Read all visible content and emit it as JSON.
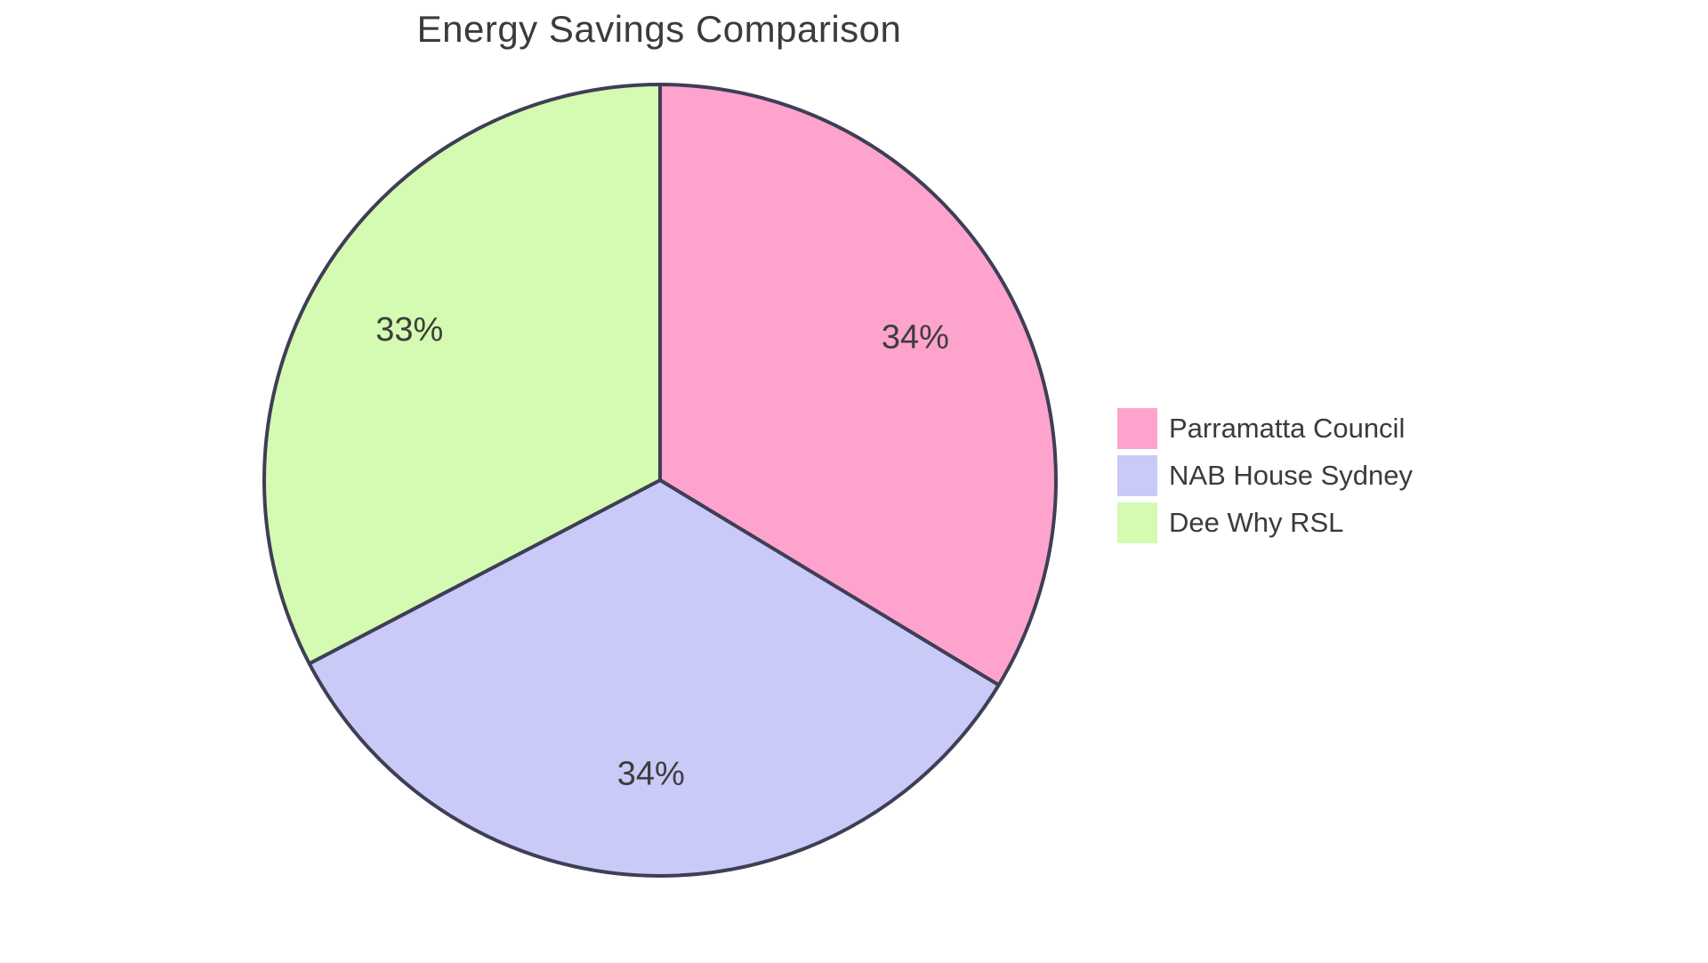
{
  "title": "Energy Savings Comparison",
  "chart_data": {
    "type": "pie",
    "title": "Energy Savings Comparison",
    "slices": [
      {
        "label": "Parramatta Council",
        "value": 34,
        "display_pct": "34%",
        "color": "#FDA3CD"
      },
      {
        "label": "NAB House Sydney",
        "value": 34,
        "display_pct": "34%",
        "color": "#CACAF8"
      },
      {
        "label": "Dee Why RSL",
        "value": 33,
        "display_pct": "33%",
        "color": "#D5FAB1"
      }
    ],
    "start_angle_deg": 0,
    "direction": "clockwise",
    "legend_position": "right",
    "outline_color": "#3E3E56",
    "outline_width": 4,
    "label_color": "#3D3D3D",
    "title_color": "#3B3B3B",
    "background_color": "#FFFFFF"
  }
}
